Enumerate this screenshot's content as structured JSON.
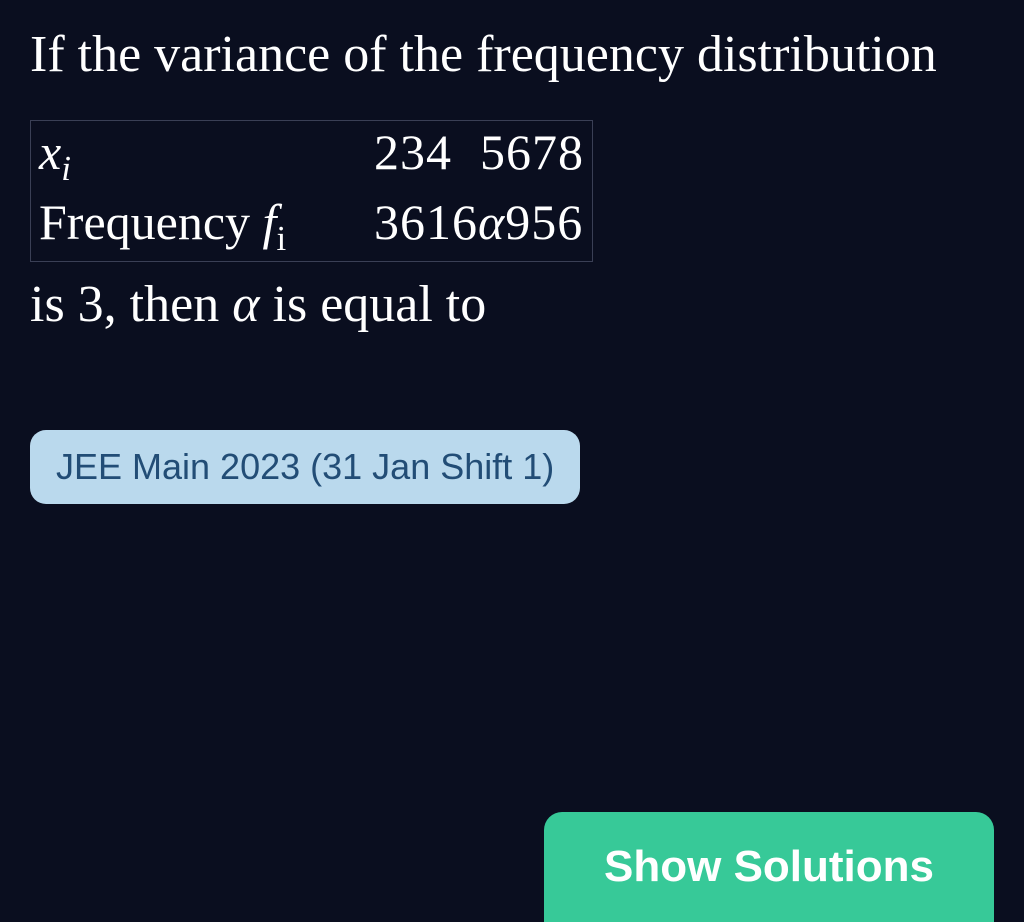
{
  "question": {
    "intro": "If the variance of the frequency distribution",
    "table": {
      "row1_label_var": "x",
      "row1_label_sub": "i",
      "row1_values_part1": "234",
      "row1_values_part2": "5678",
      "row2_label_text": "Frequency ",
      "row2_label_fi_var": "f",
      "row2_label_fi_sub": "i",
      "row2_values_part1": "3616",
      "row2_alpha": "α",
      "row2_values_part2": "956"
    },
    "trailing_text_1": "is 3, then ",
    "trailing_alpha": "α",
    "trailing_text_2": " is equal to"
  },
  "tag": {
    "label": "JEE Main 2023 (31 Jan Shift 1)"
  },
  "button": {
    "show_solutions": "Show Solutions"
  },
  "colors": {
    "background": "#0a0e1f",
    "text": "#ffffff",
    "border": "#3a3f55",
    "tag_bg": "#bad9ed",
    "tag_text": "#224d76",
    "button_bg": "#37c998",
    "button_text": "#ffffff"
  }
}
